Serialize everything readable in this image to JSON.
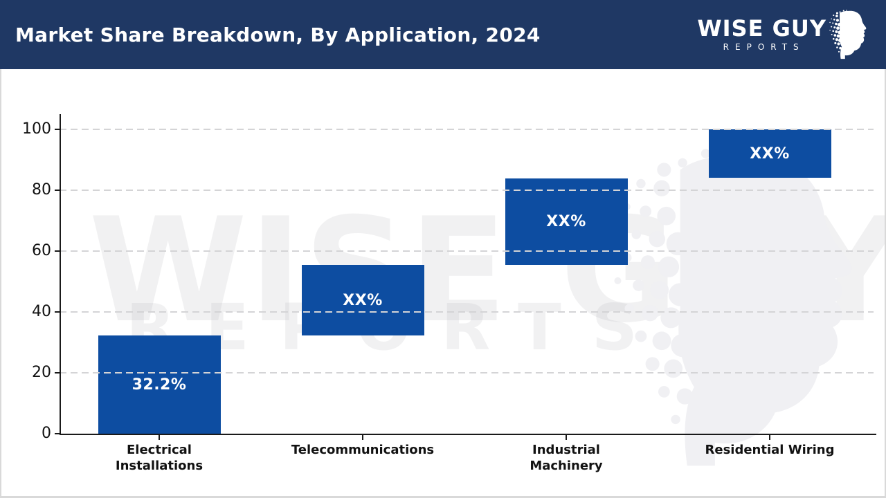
{
  "header": {
    "title": "Market Share Breakdown, By Application, 2024",
    "logo": {
      "primary": "WISE GUY",
      "secondary": "REPORTS"
    }
  },
  "watermark": {
    "primary": "WISE GUY",
    "secondary": "REPORTS"
  },
  "chart_data": {
    "type": "bar",
    "variant": "floating-waterfall",
    "title": "Market Share Breakdown, By Application, 2024",
    "categories": [
      "Electrical Installations",
      "Telecommunications",
      "Industrial Machinery",
      "Residential Wiring"
    ],
    "bars": [
      {
        "category": "Electrical Installations",
        "tick_label": "Electrical\nInstallations",
        "start": 0,
        "end": 32.2,
        "label": "32.2%"
      },
      {
        "category": "Telecommunications",
        "tick_label": "Telecommunications",
        "start": 32.2,
        "end": 55.5,
        "label": "XX%"
      },
      {
        "category": "Industrial Machinery",
        "tick_label": "Industrial\nMachinery",
        "start": 55.5,
        "end": 83.8,
        "label": "XX%"
      },
      {
        "category": "Residential Wiring",
        "tick_label": "Residential Wiring",
        "start": 84,
        "end": 100,
        "label": "XX%"
      }
    ],
    "xlabel": "",
    "ylabel": "",
    "ylim": [
      0,
      100
    ],
    "yticks": [
      0,
      20,
      40,
      60,
      80,
      100
    ],
    "grid": "horizontal-dashed-over-bars",
    "legend": false,
    "bar_color": "#0d4da1",
    "bar_label_color": "#ffffff",
    "axis_color": "#1a1a1a",
    "grid_color": "#d4d4d6"
  },
  "colors": {
    "header_bg": "#1f3864",
    "bar": "#0d4da1",
    "watermark": "#f0f0f3",
    "frame_line": "#d9d9d9"
  }
}
